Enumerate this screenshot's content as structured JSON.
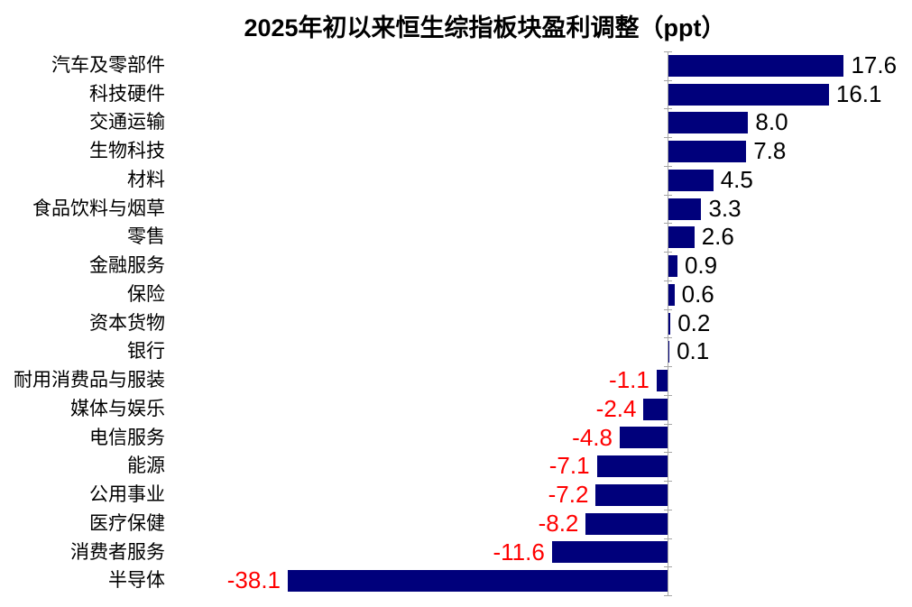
{
  "chart_data": {
    "type": "bar",
    "orientation": "horizontal",
    "title": "2025年初以来恒生综指板块盈利调整（ppt）",
    "categories": [
      "汽车及零部件",
      "科技硬件",
      "交通运输",
      "生物科技",
      "材料",
      "食品饮料与烟草",
      "零售",
      "金融服务",
      "保险",
      "资本货物",
      "银行",
      "耐用消费品与服装",
      "媒体与娱乐",
      "电信服务",
      "能源",
      "公用事业",
      "医疗保健",
      "消费者服务",
      "半导体"
    ],
    "values": [
      17.6,
      16.1,
      8.0,
      7.8,
      4.5,
      3.3,
      2.6,
      0.9,
      0.6,
      0.2,
      0.1,
      -1.1,
      -2.4,
      -4.8,
      -7.1,
      -7.2,
      -8.2,
      -11.6,
      -38.1
    ],
    "value_labels": [
      "17.6",
      "16.1",
      "8.0",
      "7.8",
      "4.5",
      "3.3",
      "2.6",
      "0.9",
      "0.6",
      "0.2",
      "0.1",
      "-1.1",
      "-2.4",
      "-4.8",
      "-7.1",
      "-7.2",
      "-8.2",
      "-11.6",
      "-38.1"
    ],
    "xlabel": "",
    "ylabel": "",
    "xlim": [
      -45,
      25
    ],
    "grid": false,
    "legend_position": "none",
    "value_labels_shown": true,
    "colors": {
      "bar": "#00007B",
      "positive_label": "#000000",
      "negative_label": "#FF0000",
      "axis": "#A6A6A6",
      "title": "#000000",
      "background": "#FFFFFF"
    }
  }
}
